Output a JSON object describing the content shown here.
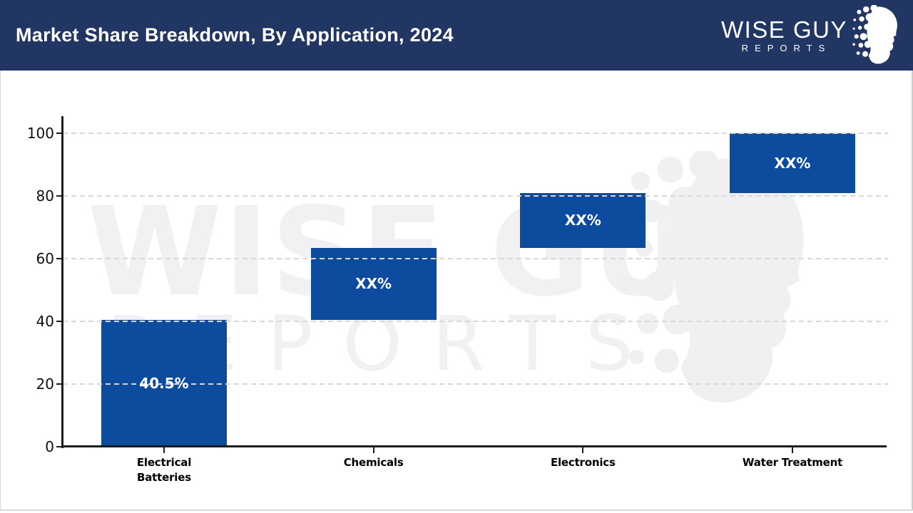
{
  "header": {
    "title": "Market Share Breakdown, By Application, 2024",
    "logo": {
      "wordmark": "WISE GUY",
      "subtext": "REPORTS"
    }
  },
  "watermark": {
    "wordmark": "WISE GUY",
    "subtext": "REPORTS"
  },
  "chart_data": {
    "type": "bar",
    "variant": "waterfall",
    "title": "Market Share Breakdown, By Application, 2024",
    "xlabel": "",
    "ylabel": "",
    "categories": [
      "Electrical\nBatteries",
      "Chemicals",
      "Electronics",
      "Water Treatment"
    ],
    "bars": [
      {
        "category": "Electrical Batteries",
        "start": 0,
        "end": 40.5,
        "value": 40.5,
        "label": "40.5%"
      },
      {
        "category": "Chemicals",
        "start": 40.5,
        "end": 63.5,
        "value": 23,
        "label": "XX%"
      },
      {
        "category": "Electronics",
        "start": 63.5,
        "end": 81,
        "value": 17.5,
        "label": "XX%"
      },
      {
        "category": "Water Treatment",
        "start": 81,
        "end": 100,
        "value": 19,
        "label": "XX%"
      }
    ],
    "ylim": [
      0,
      105
    ],
    "yticks": [
      0,
      20,
      40,
      60,
      80,
      100
    ],
    "grid": {
      "axis": "y",
      "style": "dashed",
      "color": "#d8d8d8"
    },
    "bar_color": "#0c4b9d",
    "bar_label_color": "#ffffff",
    "legend": null
  },
  "colors": {
    "header_bg": "#213663",
    "title_text": "#ffffff",
    "bar": "#0c4b9d",
    "grid": "#d8d8d8",
    "axis": "#1c1c1c",
    "tick_text": "#0f0f0f",
    "watermark": "#f1f1f3"
  }
}
